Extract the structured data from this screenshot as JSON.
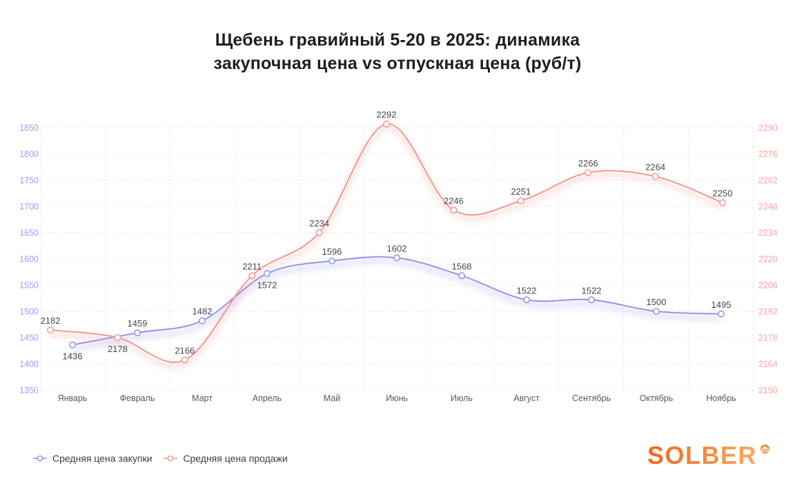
{
  "title": {
    "line1": "Щебень гравийный 5-20 в 2025: динамика",
    "line2": "закупочная цена vs отпускная цена (руб/т)"
  },
  "chart_data": {
    "type": "line",
    "title": "Щебень гравийный 5-20 в 2025: динамика закупочная цена vs отпускная цена (руб/т)",
    "categories": [
      "Январь",
      "Февраль",
      "Март",
      "Апрель",
      "Май",
      "Июнь",
      "Июль",
      "Август",
      "Сентябрь",
      "Октябрь",
      "Ноябрь"
    ],
    "series": [
      {
        "name": "Средняя цена закупки",
        "yaxis": "left",
        "color": "#8b8bee",
        "values": [
          1436,
          1459,
          1482,
          1572,
          1596,
          1602,
          1568,
          1522,
          1522,
          1500,
          1495
        ],
        "label_below_indices": [
          0,
          3
        ]
      },
      {
        "name": "Средняя цена продажи",
        "yaxis": "right",
        "color": "#f2928b",
        "values": [
          2182,
          2178,
          2166,
          2211,
          2234,
          2292,
          2246,
          2251,
          2266,
          2264,
          2250
        ],
        "label_below_indices": [
          1
        ]
      }
    ],
    "left_axis": {
      "min": 1350,
      "max": 1850,
      "ticks": [
        1850,
        1800,
        1750,
        1700,
        1650,
        1600,
        1550,
        1500,
        1450,
        1400,
        1350
      ],
      "label_color": "#9a9af2"
    },
    "right_axis": {
      "min": 2150,
      "max": 2290,
      "ticks": [
        2290,
        2276,
        2262,
        2248,
        2234,
        2220,
        2206,
        2192,
        2178,
        2164,
        2150
      ],
      "label_color": "#f8a29b"
    },
    "grid": {
      "style": "dotted",
      "color": "#e3e3e7"
    },
    "legend_position": "bottom-left",
    "point_label_color": "#47474c",
    "month_label_color": "#57575d"
  },
  "legend": {
    "items": [
      {
        "label": "Средняя цена закупки",
        "color": "#8b8bee"
      },
      {
        "label": "Средняя цена продажи",
        "color": "#f2928b"
      }
    ]
  },
  "logo": {
    "text": "SOLBER"
  }
}
